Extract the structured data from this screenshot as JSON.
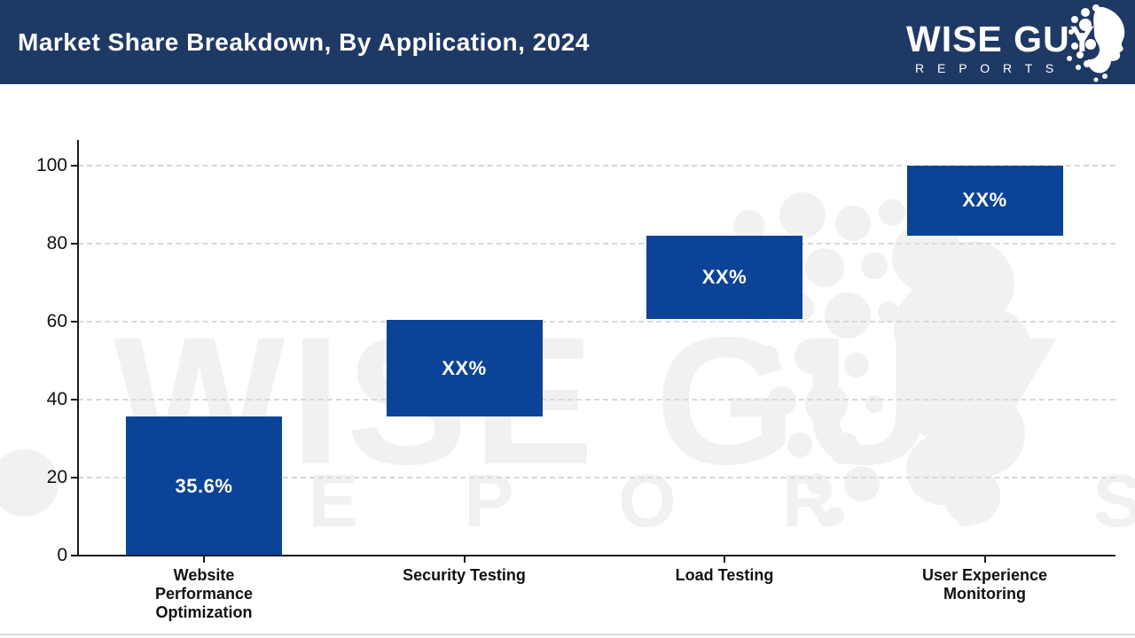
{
  "header": {
    "title": "Market Share Breakdown, By Application, 2024",
    "logo": {
      "brand": "WISE GUY",
      "sub": "R E P O R T S"
    }
  },
  "watermark": {
    "brand": "WISE GUY",
    "sub": "R E P O R T S"
  },
  "chart_data": {
    "type": "bar",
    "subtype": "waterfall",
    "title": "Market Share Breakdown, By Application, 2024",
    "unit": "%",
    "ylim": [
      0,
      100
    ],
    "yticks": [
      0,
      20,
      40,
      60,
      80,
      100
    ],
    "grid": "horizontal-dashed",
    "legend": "none",
    "categories": [
      "Website Performance Optimization",
      "Security Testing",
      "Load Testing",
      "User Experience Monitoring"
    ],
    "category_lines": [
      [
        "Website",
        "Performance",
        "Optimization"
      ],
      [
        "Security Testing"
      ],
      [
        "Load Testing"
      ],
      [
        "User Experience",
        "Monitoring"
      ]
    ],
    "segments": [
      {
        "category": "Website Performance Optimization",
        "from": 0,
        "to": 35.6,
        "label": "35.6%"
      },
      {
        "category": "Security Testing",
        "from": 35.6,
        "to": 60.5,
        "label": "XX%"
      },
      {
        "category": "Load Testing",
        "from": 60.7,
        "to": 82.1,
        "label": "XX%"
      },
      {
        "category": "User Experience Monitoring",
        "from": 82.1,
        "to": 100,
        "label": "XX%"
      }
    ]
  },
  "colors": {
    "header_bg": "#1f3965",
    "bar": "#0a4397",
    "bar_label": "#ffffff",
    "axis": "#1a1a1a",
    "grid": "#d9d9d9",
    "text": "#111111",
    "watermark": "#f1f1f1",
    "background": "#ffffff"
  }
}
